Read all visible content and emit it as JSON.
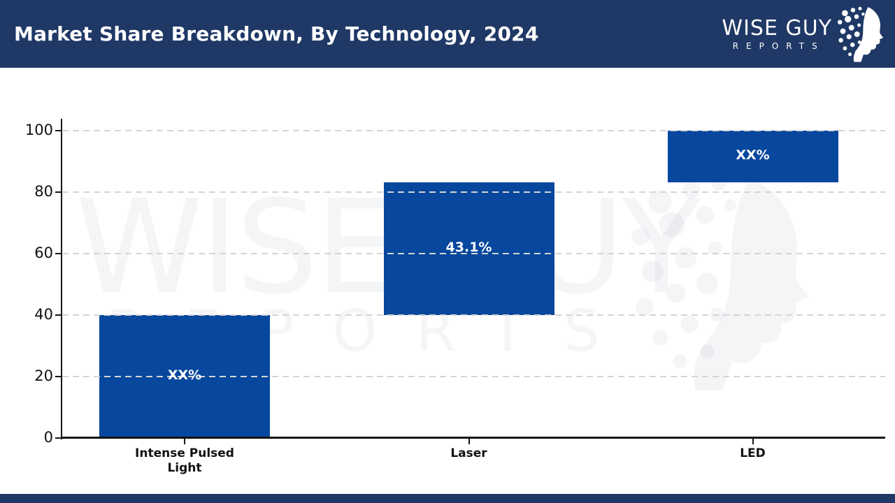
{
  "header": {
    "title": "Market Share Breakdown, By Technology, 2024",
    "bg_color": "#1f3866",
    "logo": {
      "line1": "WISE GUY",
      "line2": "REPORTS"
    }
  },
  "watermark": {
    "line1": "WISE GUY",
    "line2": "REPORTS"
  },
  "footer": {
    "bg_color": "#1f3866"
  },
  "chart_data": {
    "type": "bar",
    "subtype": "waterfall",
    "title": "Market Share Breakdown, By Technology, 2024",
    "categories": [
      "Intense Pulsed Light",
      "Laser",
      "LED"
    ],
    "segments": [
      {
        "category": "Intense Pulsed Light",
        "start": 0,
        "end": 40,
        "label": "XX%"
      },
      {
        "category": "Laser",
        "start": 40,
        "end": 83.1,
        "label": "43.1%"
      },
      {
        "category": "LED",
        "start": 83.1,
        "end": 100,
        "label": "XX%"
      }
    ],
    "xlabel": "",
    "ylabel": "",
    "ylim": [
      0,
      105
    ],
    "yticks": [
      0,
      20,
      40,
      60,
      80,
      100
    ],
    "grid": "horizontal-dashed",
    "legend": "none",
    "bar_color": "#07479d",
    "bar_label_color": "#ffffff",
    "axis_color": "#151515",
    "grid_color": "#d5d5d5"
  }
}
